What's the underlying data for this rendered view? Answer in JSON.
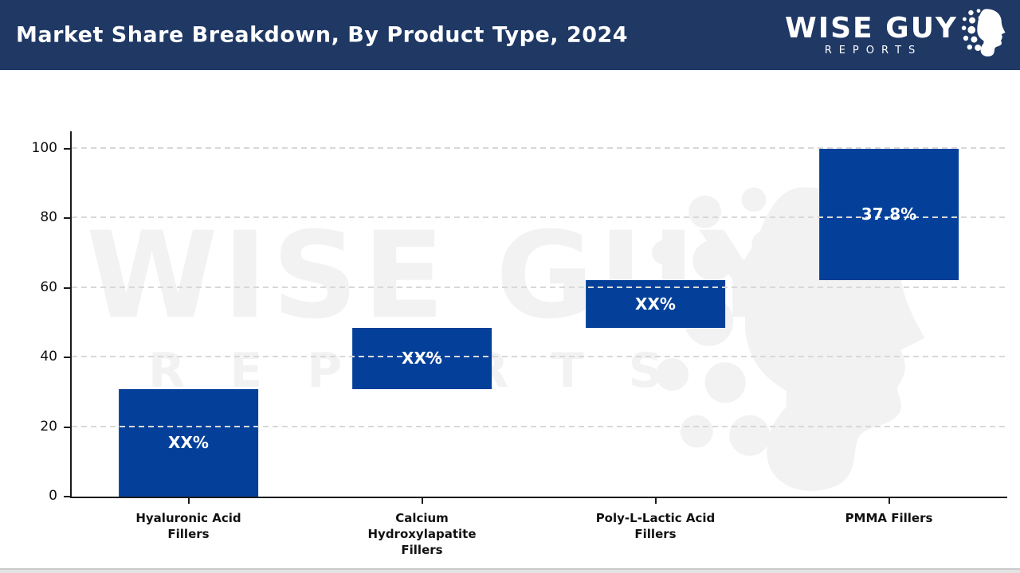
{
  "header": {
    "title": "Market Share Breakdown, By Product Type, 2024",
    "logo": {
      "wordmark": "WISE GUY",
      "subtext": "REPORTS"
    }
  },
  "watermark": {
    "wordmark": "WISE GUY",
    "subtext": "REPORTS"
  },
  "chart_data": {
    "type": "bar",
    "subtype": "waterfall-segments",
    "title": "Market Share Breakdown, By Product Type, 2024",
    "categories": [
      "Hyaluronic Acid\nFillers",
      "Calcium\nHydroxylapatite\nFillers",
      "Poly-L-Lactic Acid\nFillers",
      "PMMA Fillers"
    ],
    "bars": [
      {
        "id": "hyaluronic-acid-fillers",
        "category": "Hyaluronic Acid\nFillers",
        "start": 0,
        "end": 31,
        "label": "XX%"
      },
      {
        "id": "calcium-hydroxylapatite-fillers",
        "category": "Calcium\nHydroxylapatite\nFillers",
        "start": 31,
        "end": 48.5,
        "label": "XX%"
      },
      {
        "id": "poly-l-lactic-acid-fillers",
        "category": "Poly-L-Lactic Acid\nFillers",
        "start": 48.5,
        "end": 62.2,
        "label": "XX%"
      },
      {
        "id": "pmma-fillers",
        "category": "PMMA Fillers",
        "start": 62.2,
        "end": 100,
        "label": "37.8%"
      }
    ],
    "yticks": [
      0,
      20,
      40,
      60,
      80,
      100
    ],
    "ylim": [
      0,
      105
    ],
    "xlabel": "",
    "ylabel": "",
    "grid": "horizontal-dashed",
    "legend": "none"
  },
  "colors": {
    "header_bg": "#1f3864",
    "header_text": "#ffffff",
    "bar": "#04409a",
    "bar_label": "#ffffff",
    "grid": "#d8d8d8",
    "axis": "#1a1a1a",
    "tick_label": "#111111",
    "watermark": "#f2f2f3",
    "footer_line": "#c9c9c9",
    "footer_band": "#e3e3e3"
  }
}
